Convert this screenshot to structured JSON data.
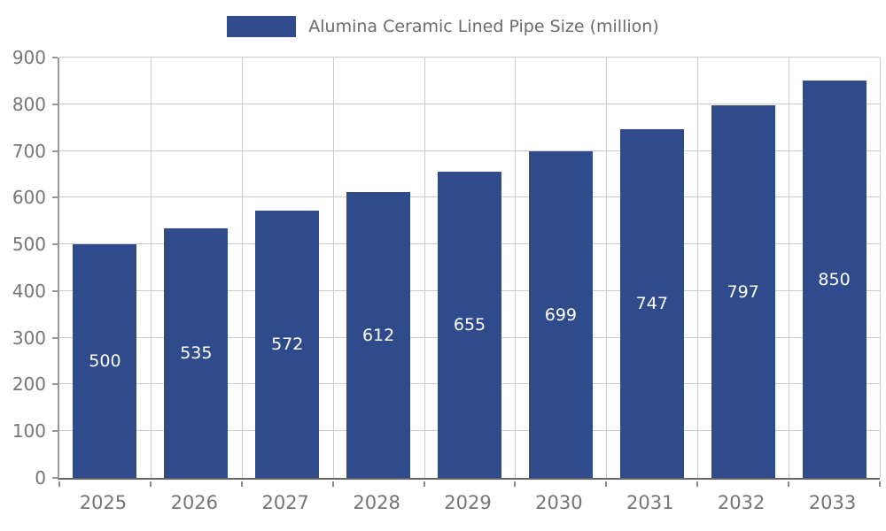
{
  "chart_data": {
    "type": "bar",
    "title": "",
    "legend": "Alumina Ceramic Lined Pipe Size (million)",
    "categories": [
      "2025",
      "2026",
      "2027",
      "2028",
      "2029",
      "2030",
      "2031",
      "2032",
      "2033"
    ],
    "values": [
      500,
      535,
      572,
      612,
      655,
      699,
      747,
      797,
      850
    ],
    "xlabel": "",
    "ylabel": "",
    "ylim": [
      0,
      900
    ],
    "ytick_step": 100,
    "grid": true,
    "legend_position": "top",
    "bar_color": "#2f4b8c",
    "bar_label_color": "#ffffff",
    "axis_text_color": "#757575",
    "gridline_color": "#cccccc"
  }
}
